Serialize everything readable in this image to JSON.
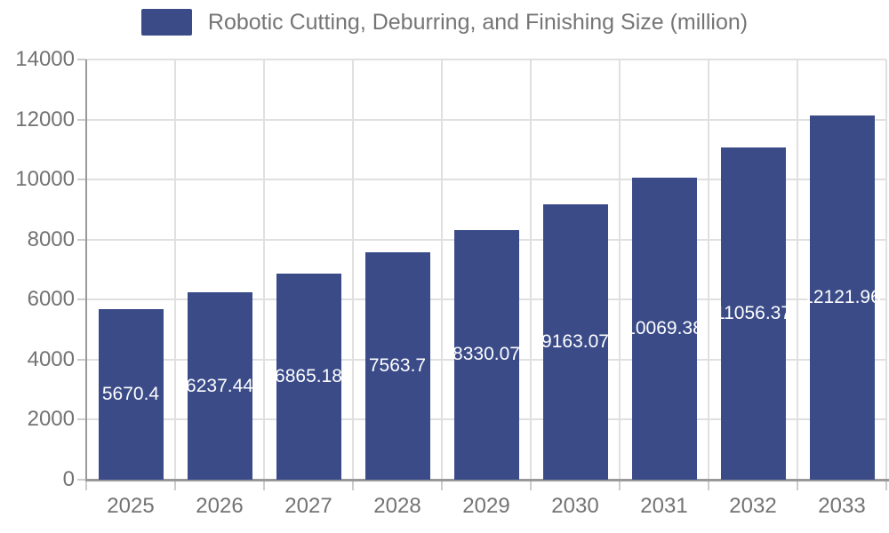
{
  "legend": {
    "label": "Robotic Cutting, Deburring, and Finishing Size (million)"
  },
  "chart_data": {
    "type": "bar",
    "title": "Robotic Cutting, Deburring, and Finishing Size (million)",
    "categories": [
      "2025",
      "2026",
      "2027",
      "2028",
      "2029",
      "2030",
      "2031",
      "2032",
      "2033"
    ],
    "values": [
      5670.4,
      6237.44,
      6865.18,
      7563.7,
      8330.07,
      9163.07,
      10069.38,
      11056.37,
      12121.96
    ],
    "value_labels": [
      "5670.4",
      "6237.44",
      "6865.18",
      "7563.7",
      "8330.07",
      "9163.07",
      "10069.38",
      "11056.37",
      "12121.96"
    ],
    "xlabel": "",
    "ylabel": "",
    "ylim": [
      0,
      14000
    ],
    "ytick_labels": [
      "0",
      "2000",
      "4000",
      "6000",
      "8000",
      "10000",
      "12000",
      "14000"
    ],
    "grid": true,
    "legend_position": "top",
    "label_position": "inside-middle",
    "colors": {
      "bar": "#3A4B88",
      "data_label": "#ffffff",
      "axis_label": "#737373",
      "legend_text": "#757575",
      "gridline": "#e0e0e0",
      "axis_line": "#999999",
      "tick": "#cccccc",
      "background": "#ffffff"
    }
  }
}
